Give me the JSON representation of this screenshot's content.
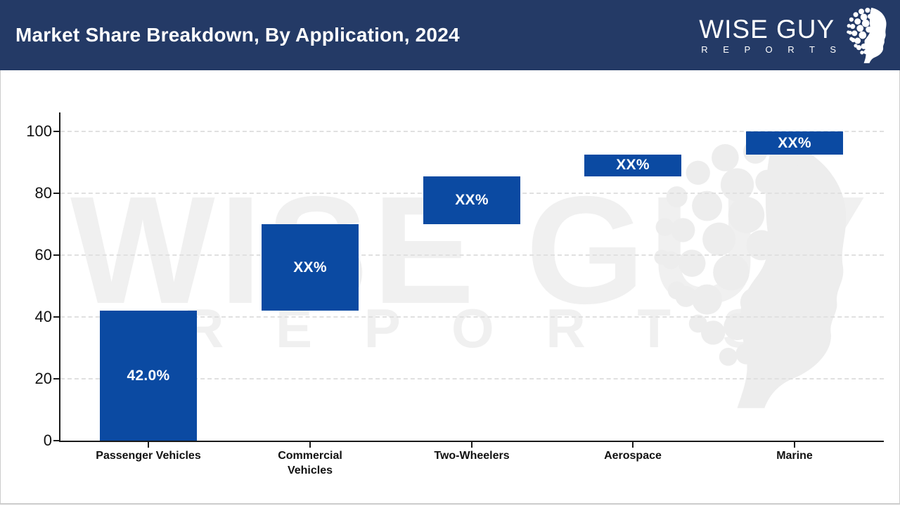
{
  "header": {
    "title": "Market Share Breakdown, By Application, 2024",
    "logo": {
      "name_line": "WISE GUY",
      "sub_line": "R E P O R T S"
    }
  },
  "watermark": {
    "name_line": "WISE GUY",
    "sub_line": "R E P O R T S"
  },
  "colors": {
    "header_bg": "#243a66",
    "bar_fill": "#0b4aa2",
    "bar_label_text": "#ffffff",
    "gridline": "#e0e0e0",
    "axis": "#1a1a1a",
    "tick_label": "#111111",
    "watermark_gray": "#f0f0f0",
    "frame_border": "#cccccc"
  },
  "chart_data": {
    "type": "bar",
    "subtype": "waterfall-floating-bars",
    "title": "Market Share Breakdown, By Application, 2024",
    "categories": [
      "Passenger Vehicles",
      "Commercial\nVehicles",
      "Two-Wheelers",
      "Aerospace",
      "Marine"
    ],
    "segments": [
      {
        "category": "Passenger Vehicles",
        "start": 0,
        "end": 42,
        "label": "42.0%"
      },
      {
        "category": "Commercial Vehicles",
        "start": 42,
        "end": 70,
        "label": "XX%"
      },
      {
        "category": "Two-Wheelers",
        "start": 70,
        "end": 85.5,
        "label": "XX%"
      },
      {
        "category": "Aerospace",
        "start": 85.5,
        "end": 92.5,
        "label": "XX%"
      },
      {
        "category": "Marine",
        "start": 92.5,
        "end": 100,
        "label": "XX%"
      }
    ],
    "xlabel": "",
    "ylabel": "",
    "yticks": [
      0,
      20,
      40,
      60,
      80,
      100
    ],
    "ylim": [
      0,
      106
    ],
    "grid": "horizontal-dashed",
    "legend": false
  }
}
